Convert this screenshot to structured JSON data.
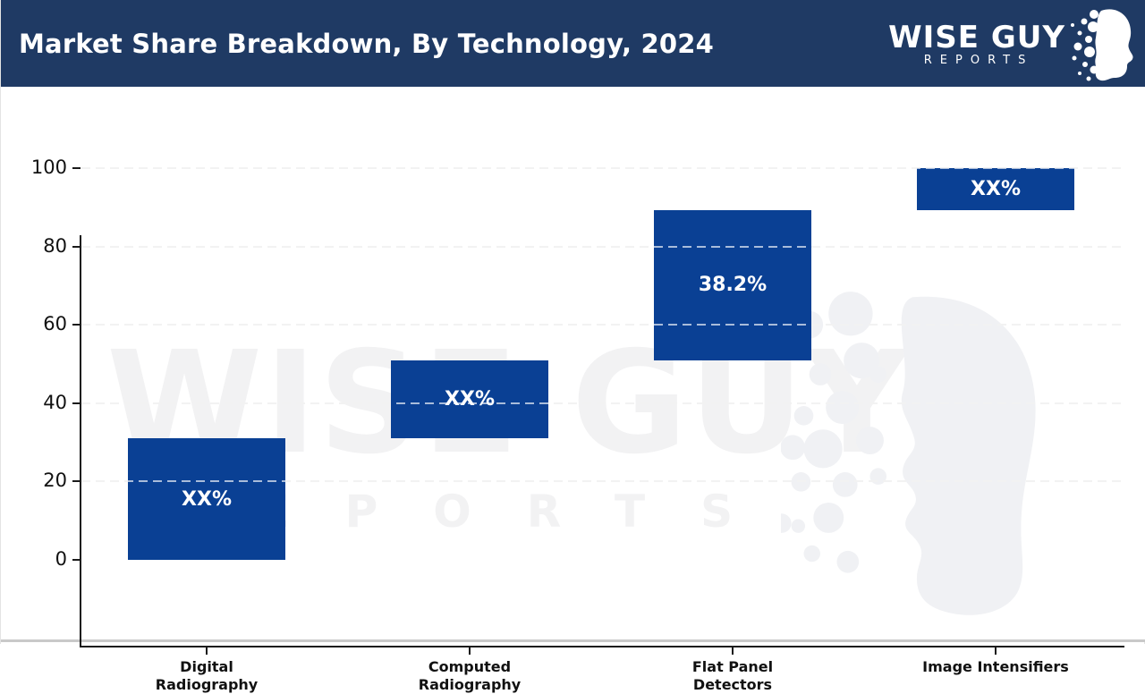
{
  "header": {
    "title": "Market Share Breakdown, By Technology, 2024",
    "logo": {
      "brand_top": "WISE GUY",
      "brand_bottom": "REPORTS"
    }
  },
  "watermark": {
    "text_large": "WISE GUY",
    "text_small": "REPORTS"
  },
  "chart_data": {
    "type": "bar",
    "variant": "floating-waterfall",
    "title": "Market Share Breakdown, By Technology, 2024",
    "categories": [
      {
        "name": "Digital Radiography",
        "label_lines": [
          "Digital",
          "Radiography"
        ]
      },
      {
        "name": "Computed Radiography",
        "label_lines": [
          "Computed",
          "Radiography"
        ]
      },
      {
        "name": "Flat Panel Detectors",
        "label_lines": [
          "Flat Panel",
          "Detectors"
        ]
      },
      {
        "name": "Image Intensifiers",
        "label_lines": [
          "Image Intensifiers"
        ]
      }
    ],
    "segments": [
      {
        "category": "Digital Radiography",
        "start": 0,
        "end": 31,
        "value_label": "XX%"
      },
      {
        "category": "Computed Radiography",
        "start": 31,
        "end": 51,
        "value_label": "XX%"
      },
      {
        "category": "Flat Panel Detectors",
        "start": 51,
        "end": 89.2,
        "value_label": "38.2%"
      },
      {
        "category": "Image Intensifiers",
        "start": 89.2,
        "end": 100,
        "value_label": "XX%"
      }
    ],
    "yticks": [
      0,
      20,
      40,
      60,
      80,
      100
    ],
    "ylim": [
      0,
      105
    ],
    "xlabel": "",
    "ylabel": "",
    "legend": null,
    "grid": {
      "horizontal": true,
      "style": "dashed"
    },
    "colors": {
      "bar": "#0a4094",
      "header_bg": "#1f3a64",
      "grid": "#d9d9d9",
      "axis": "#1a1a1a",
      "value_label": "#ffffff",
      "watermark": "#f2f2f3"
    }
  }
}
